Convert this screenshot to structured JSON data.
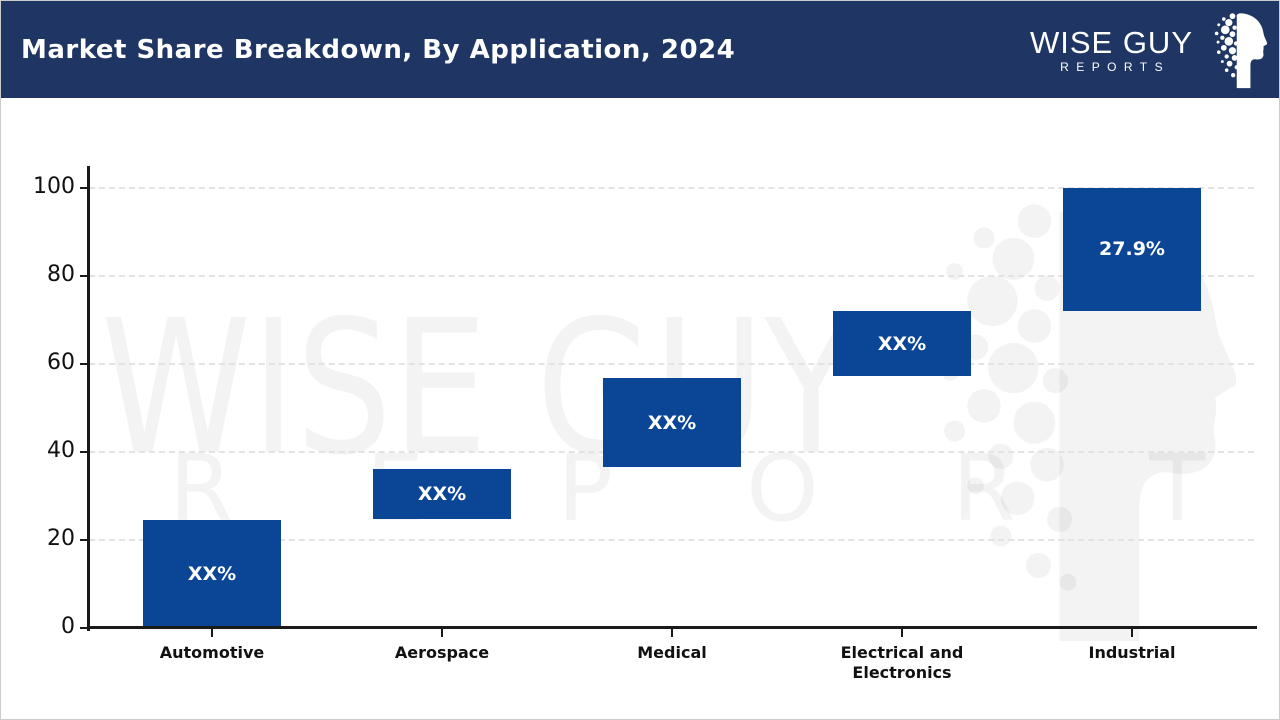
{
  "header": {
    "title": "Market Share Breakdown, By Application, 2024",
    "logo": {
      "name": "WISE GUY",
      "sub": "REPORTS",
      "face_icon": "dotted-face-profile"
    }
  },
  "watermark": {
    "line1": "WISE GUY",
    "line2": "R E P O R T S"
  },
  "colors": {
    "header_bg": "#1f3664",
    "bar": "#0b4596",
    "bar_label": "#ffffff",
    "axis": "#1a1a1a",
    "grid": "#e3e3e3",
    "label_text": "#111111",
    "title_text": "#ffffff",
    "watermark": "rgba(17,17,17,0.05)"
  },
  "chart_data": {
    "type": "bar",
    "subtype": "floating-waterfall",
    "title": "Market Share Breakdown, By Application, 2024",
    "xlabel": "",
    "ylabel": "",
    "unit": "percent market share",
    "ylim": [
      0,
      105
    ],
    "yticks": [
      0,
      20,
      40,
      60,
      80,
      100
    ],
    "grid": "horizontal-dashed",
    "legend": "none",
    "bars": [
      {
        "category": "Automotive",
        "lines": [
          "Automotive"
        ],
        "start": 0,
        "end": 24.6,
        "label": "XX%"
      },
      {
        "category": "Aerospace",
        "lines": [
          "Aerospace"
        ],
        "start": 24.8,
        "end": 36.2,
        "label": "XX%"
      },
      {
        "category": "Medical",
        "lines": [
          "Medical"
        ],
        "start": 36.6,
        "end": 56.8,
        "label": "XX%"
      },
      {
        "category": "Electrical and Electronics",
        "lines": [
          "Electrical and",
          "Electronics"
        ],
        "start": 57.3,
        "end": 72.0,
        "label": "XX%"
      },
      {
        "category": "Industrial",
        "lines": [
          "Industrial"
        ],
        "start": 72.1,
        "end": 100,
        "label": "27.9%"
      }
    ]
  }
}
